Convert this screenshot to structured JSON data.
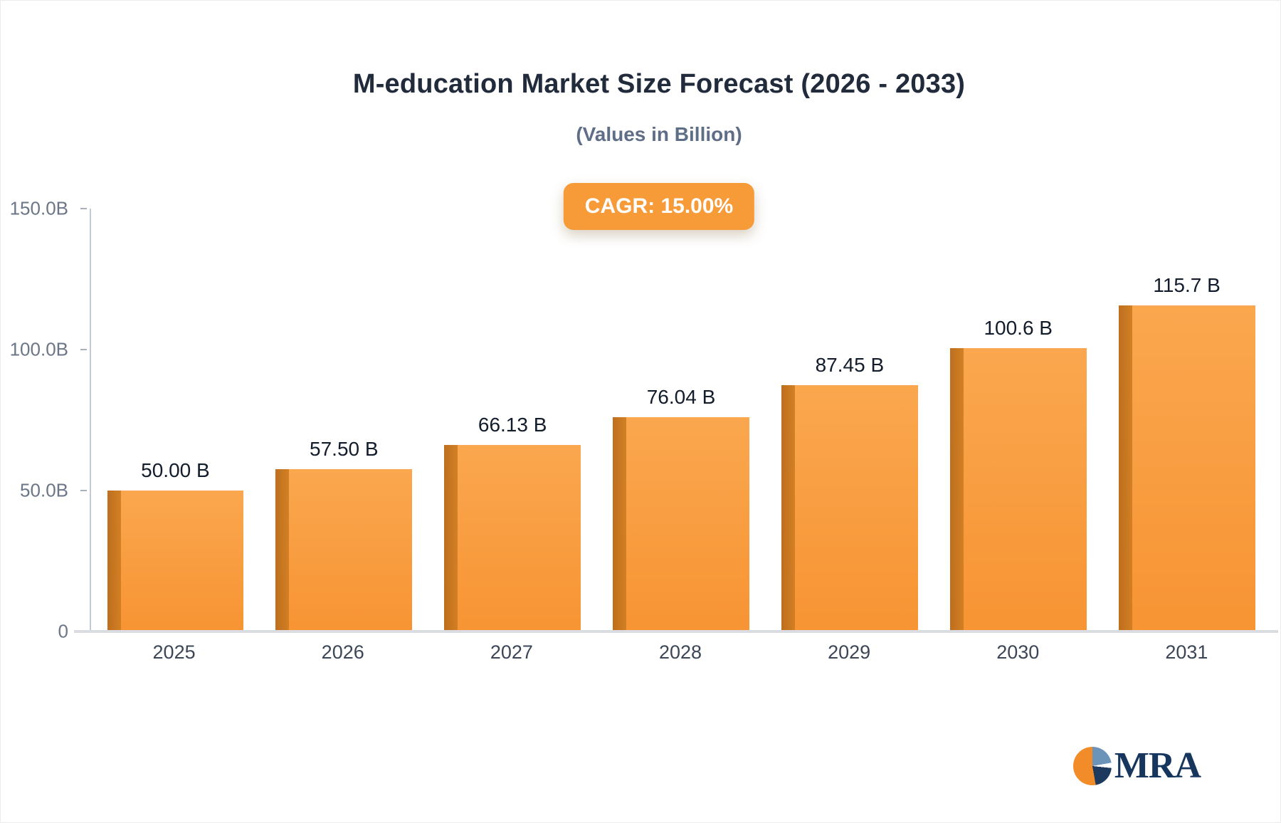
{
  "title": "M-education Market Size Forecast (2026 - 2033)",
  "subtitle": "(Values in Billion)",
  "badge": {
    "label": "CAGR: 15.00%",
    "bg": "#f79a38",
    "text_color": "#ffffff"
  },
  "logo": {
    "text": "MRA",
    "icon": "pie-chart-icon",
    "colors": [
      "#f28c28",
      "#6c93b8",
      "#1d3a5e"
    ]
  },
  "chart_data": {
    "type": "bar",
    "title": "M-education Market Size Forecast (2026 - 2033)",
    "subtitle": "(Values in Billion)",
    "categories": [
      "2025",
      "2026",
      "2027",
      "2028",
      "2029",
      "2030",
      "2031"
    ],
    "values": [
      50.0,
      57.5,
      66.13,
      76.04,
      87.45,
      100.6,
      115.7
    ],
    "labels": [
      "50.00 B",
      "57.50 B",
      "66.13 B",
      "76.04 B",
      "87.45 B",
      "100.6 B",
      "115.7 B"
    ],
    "xlabel": "",
    "ylabel": "",
    "ylim": [
      0,
      150
    ],
    "yticks": [
      "150.0B",
      "100.0B",
      "50.0B",
      "0"
    ],
    "ytick_values": [
      150,
      100,
      50,
      0
    ],
    "grid": false,
    "legend": false,
    "bar_color": "#f9a03f",
    "bar_side_color": "#c4741e",
    "annotation": "CAGR: 15.00%"
  }
}
